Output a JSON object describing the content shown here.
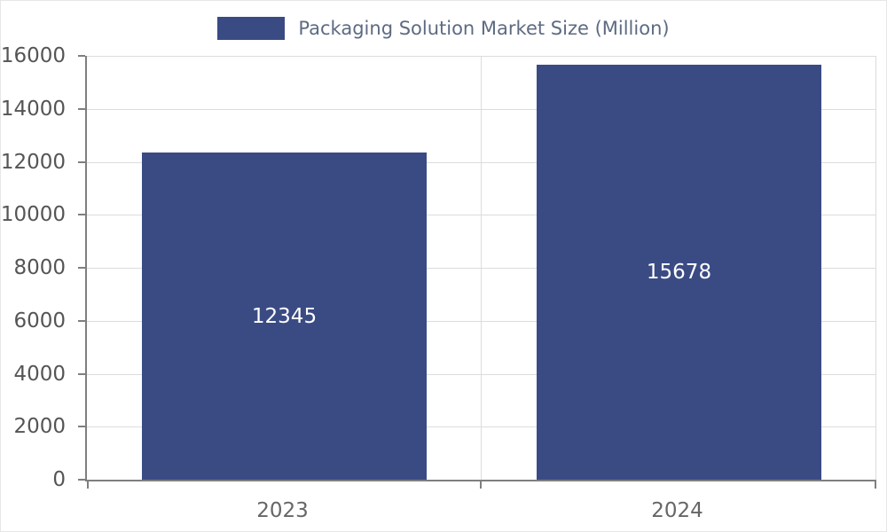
{
  "chart_data": {
    "type": "bar",
    "title": "Packaging Solution Market Size (Million)",
    "categories": [
      "2023",
      "2024"
    ],
    "series": [
      {
        "name": "Packaging Solution Market Size (Million)",
        "values": [
          12345,
          15678
        ]
      }
    ],
    "xlabel": "",
    "ylabel": "",
    "ylim": [
      0,
      16000
    ],
    "yticks": [
      0,
      2000,
      4000,
      6000,
      8000,
      10000,
      12000,
      14000,
      16000
    ],
    "grid": true,
    "legend_position": "top-center",
    "bar_width_fraction": 0.72,
    "colors": {
      "bar": "#3A4B84",
      "bar_label": "#FFFFFF",
      "legend_text": "#5D6B82",
      "axis_line": "#7F7F7F",
      "grid_line": "#DCDCDC",
      "y_tick_label": "#555555",
      "x_tick_label": "#666666",
      "background": "#FFFFFF"
    }
  }
}
